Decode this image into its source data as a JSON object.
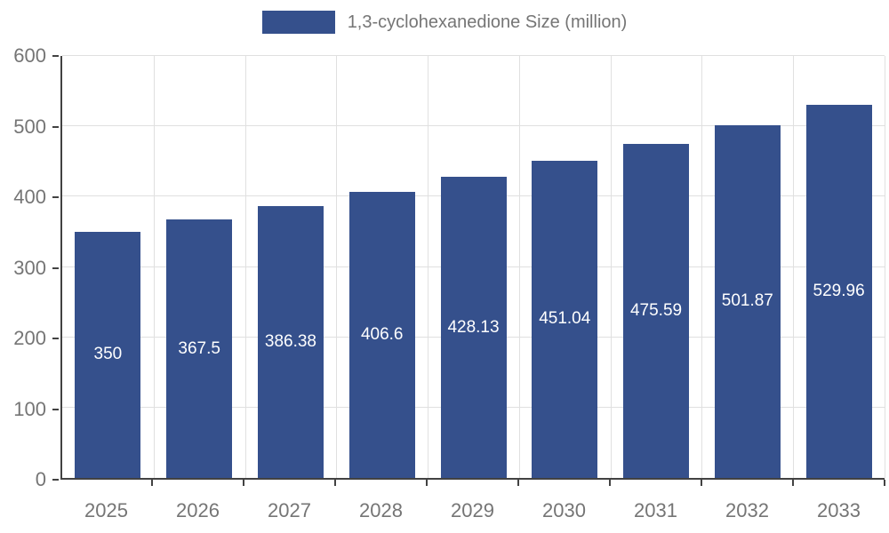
{
  "chart_data": {
    "type": "bar",
    "title": "1,3-cyclohexanedione Size (million)",
    "categories": [
      "2025",
      "2026",
      "2027",
      "2028",
      "2029",
      "2030",
      "2031",
      "2032",
      "2033"
    ],
    "values": [
      350,
      367.5,
      386.38,
      406.6,
      428.13,
      451.04,
      475.59,
      501.87,
      529.96
    ],
    "value_labels": [
      "350",
      "367.5",
      "386.38",
      "406.6",
      "428.13",
      "451.04",
      "475.59",
      "501.87",
      "529.96"
    ],
    "xlabel": "",
    "ylabel": "",
    "ylim": [
      0,
      600
    ],
    "yticks": [
      0,
      100,
      200,
      300,
      400,
      500,
      600
    ],
    "grid": true,
    "legend_position": "top",
    "colors": {
      "bar": "#35508c",
      "value_label": "#ffffff",
      "axis": "#424242",
      "gridline": "#e0e0e0",
      "tick_label": "#757575"
    }
  }
}
